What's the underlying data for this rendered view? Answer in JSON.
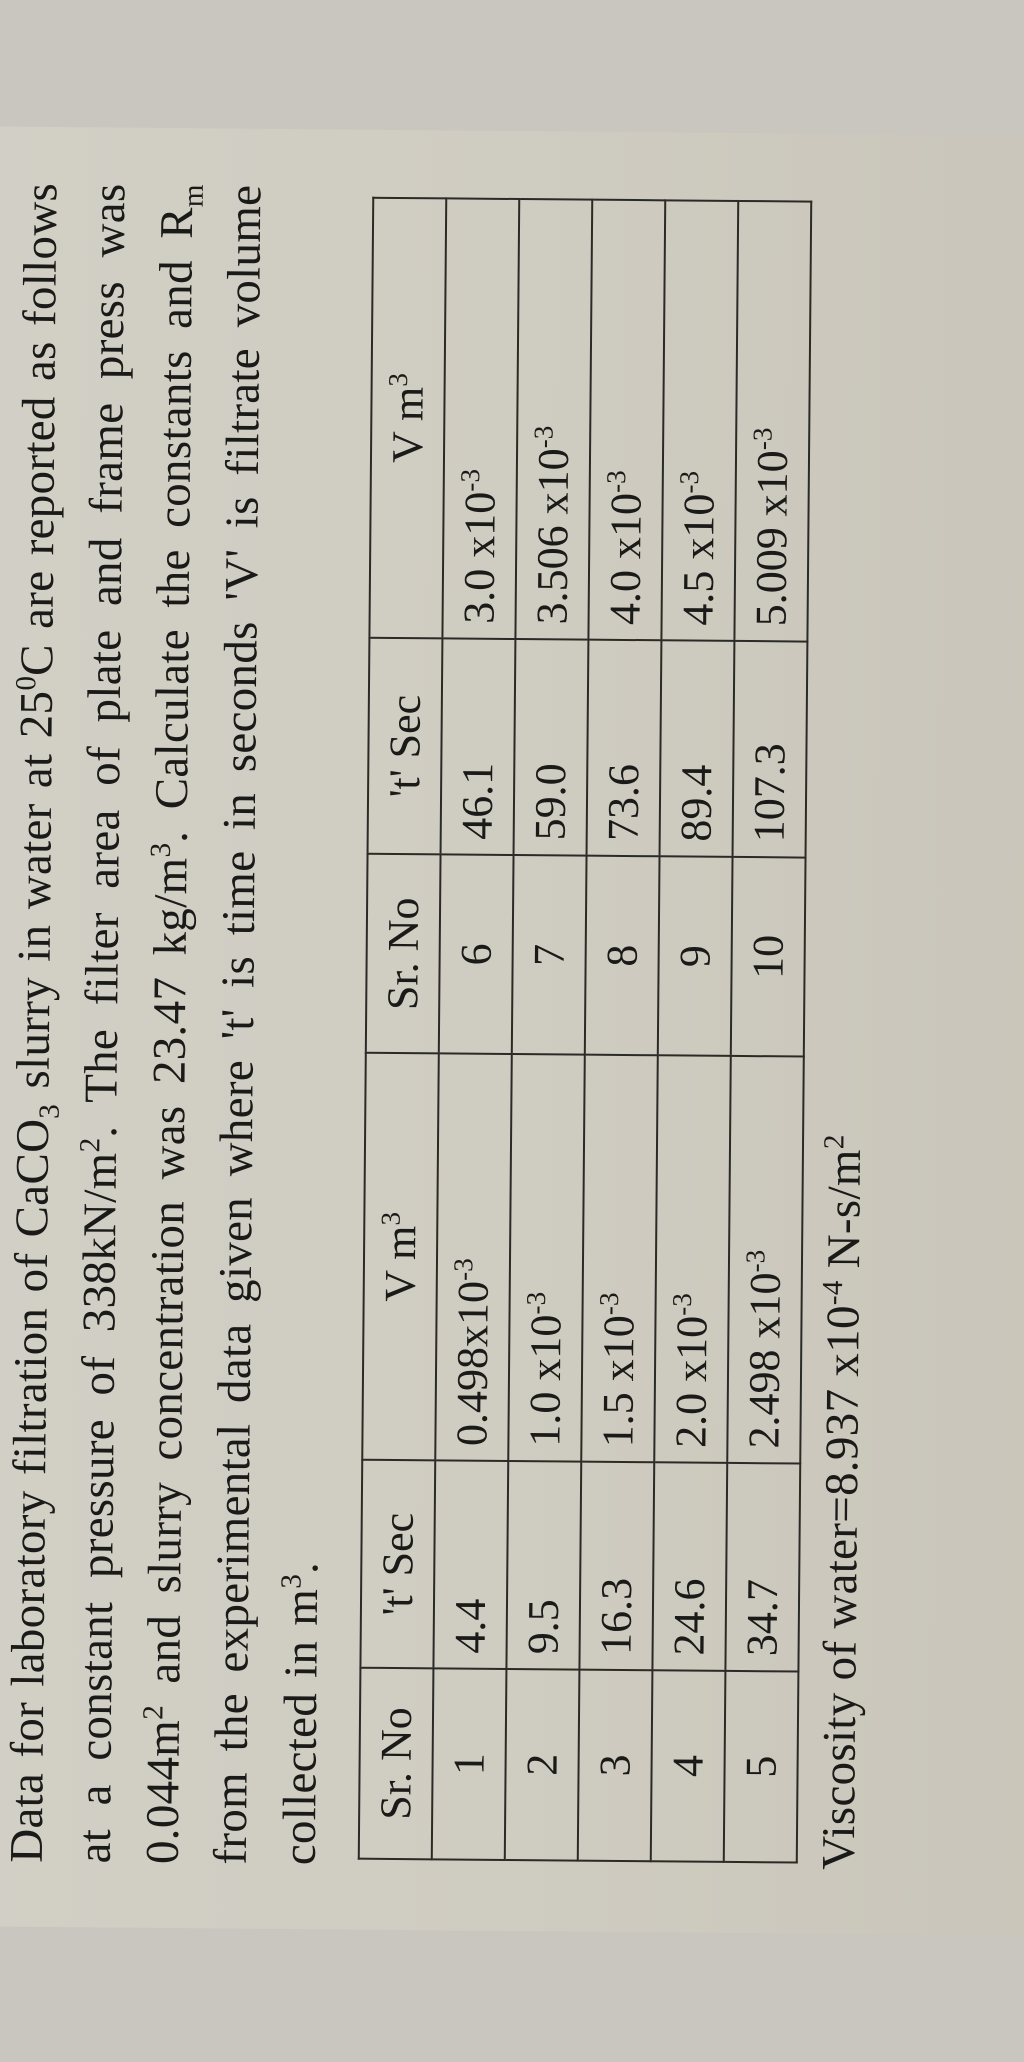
{
  "paragraph": {
    "l1a": "Data for laboratory filtration of CaCO",
    "l1b": " slurry in water at 25",
    "l1c": "C are reported",
    "l2a": "as follows at a constant pressure of 338kN/m",
    "l2b": ". The filter area of plate and",
    "l3a": "frame press was 0.044m",
    "l3b": " and slurry concentration was 23.47 kg/m",
    "l3c": ".",
    "l4a": "Calculate the constants and R",
    "l4b": " from the experimental data given where 't'",
    "l5a": "is time in seconds 'V' is filtrate volume collected in m",
    "l5b": "."
  },
  "superscripts": {
    "three": "3",
    "two": "2",
    "zero": "0"
  },
  "subscripts": {
    "m": "m"
  },
  "table": {
    "headers": {
      "sr": "Sr. No",
      "t": "'t' Sec",
      "v": "V m",
      "sr2": "Sr. No",
      "t2": "'t' Sec",
      "v2": "V m"
    },
    "rows": [
      {
        "sr": "1",
        "t": "4.4",
        "v": "0.498x10",
        "sr2": "6",
        "t2": "46.1",
        "v2": "3.0 x10"
      },
      {
        "sr": "2",
        "t": "9.5",
        "v": "1.0 x10",
        "sr2": "7",
        "t2": "59.0",
        "v2": "3.506 x10"
      },
      {
        "sr": "3",
        "t": "16.3",
        "v": "1.5 x10",
        "sr2": "8",
        "t2": "73.6",
        "v2": "4.0 x10"
      },
      {
        "sr": "4",
        "t": "24.6",
        "v": "2.0 x10",
        "sr2": "9",
        "t2": "89.4",
        "v2": "4.5 x10"
      },
      {
        "sr": "5",
        "t": "34.7",
        "v": "2.498 x10",
        "sr2": "10",
        "t2": "107.3",
        "v2": "5.009 x10"
      }
    ],
    "neg3": "-3"
  },
  "footer": {
    "a": "Viscosity of water=8.937 x10",
    "exp": "-4",
    "b": " N-s/m"
  },
  "cutoff_top": "—"
}
